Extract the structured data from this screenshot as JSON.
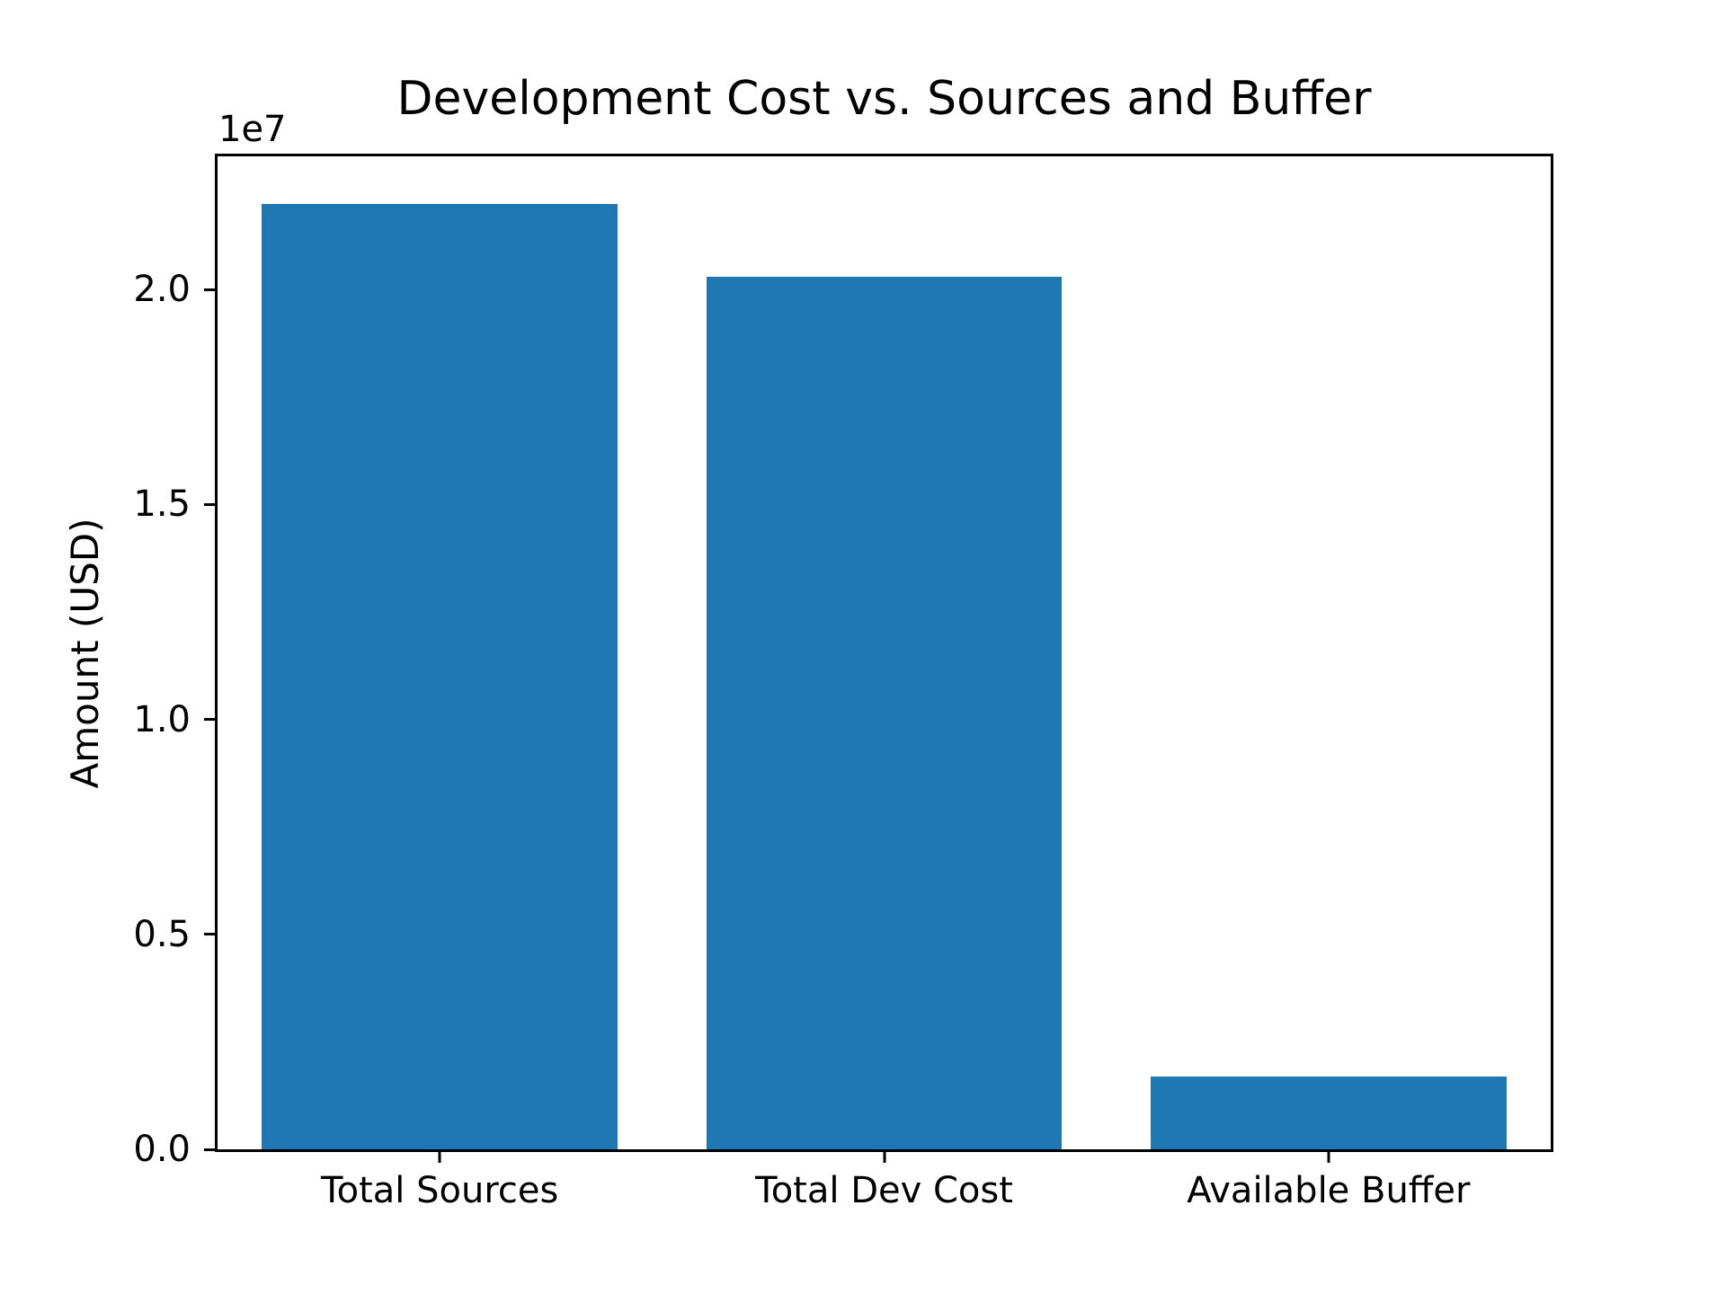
{
  "chart_data": {
    "type": "bar",
    "title": "Development Cost vs. Sources and Buffer",
    "categories": [
      "Total Sources",
      "Total Dev Cost",
      "Available Buffer"
    ],
    "values": [
      22000000,
      20300000,
      1700000
    ],
    "xlabel": "",
    "ylabel": "Amount (USD)",
    "ylim": [
      0,
      23100000
    ],
    "yticks": [
      0,
      5000000,
      10000000,
      15000000,
      20000000
    ],
    "ytick_labels": [
      "0.0",
      "0.5",
      "1.0",
      "1.5",
      "2.0"
    ],
    "offset_label": "1e7",
    "bar_color": "#1f77b4",
    "axis_color": "#000000",
    "grid": false,
    "legend": null
  }
}
